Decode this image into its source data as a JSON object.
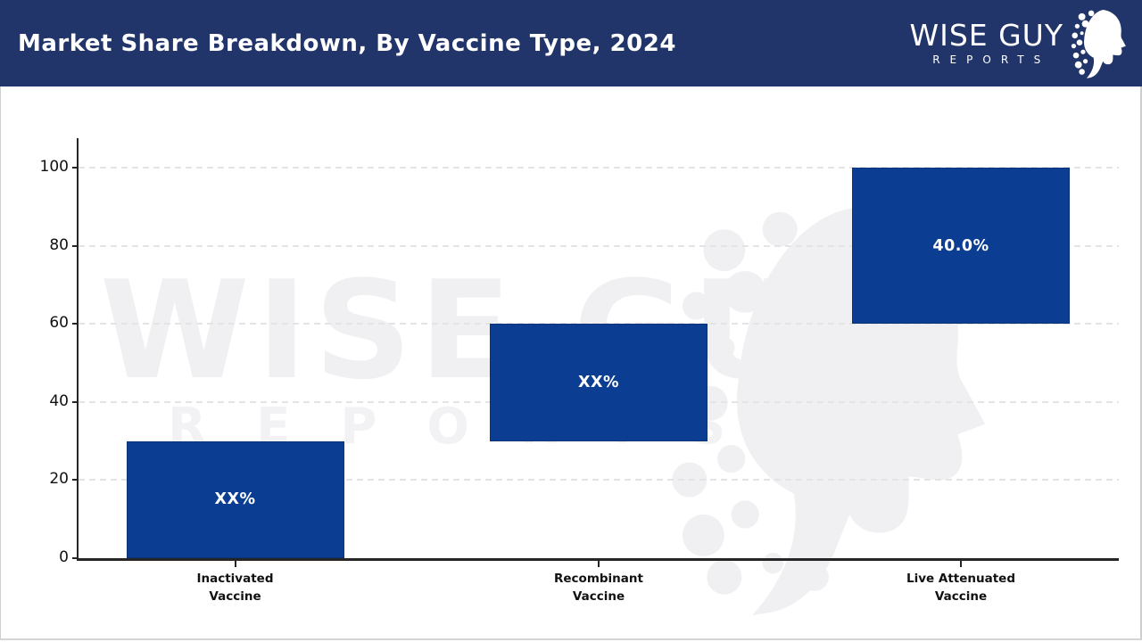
{
  "header": {
    "title": "Market Share Breakdown, By Vaccine Type, 2024",
    "logo": {
      "line1": "WISE GUY",
      "line2": "REPORTS"
    }
  },
  "watermark": {
    "line1": "WISE GUY",
    "line2": "REPORTS"
  },
  "colors": {
    "header_bg": "#21356a",
    "bar": "#0b3e92",
    "bar_edge": "#093577",
    "axis": "#262626",
    "grid": "#e4e4e7",
    "watermark": "#f0f0f3",
    "frame_border": "#cfcfcf",
    "bar_label": "#ffffff"
  },
  "chart_data": {
    "type": "bar",
    "subtype": "waterfall",
    "title": "Market Share Breakdown, By Vaccine Type, 2024",
    "categories": [
      "Inactivated Vaccine",
      "Recombinant Vaccine",
      "Live Attenuated Vaccine"
    ],
    "bars": [
      {
        "category_lines": [
          "Inactivated",
          "Vaccine"
        ],
        "start": 0,
        "end": 30,
        "value": 30,
        "label": "XX%"
      },
      {
        "category_lines": [
          "Recombinant",
          "Vaccine"
        ],
        "start": 30,
        "end": 60,
        "value": 30,
        "label": "XX%"
      },
      {
        "category_lines": [
          "Live Attenuated",
          "Vaccine"
        ],
        "start": 60,
        "end": 100,
        "value": 40,
        "label": "40.0%"
      }
    ],
    "yticks": [
      0,
      20,
      40,
      60,
      80,
      100
    ],
    "ylim": [
      0,
      107.5
    ],
    "xlabel": "",
    "ylabel": "",
    "grid": "horizontal-dashed",
    "legend": "none",
    "bar_color": "#0b3e92",
    "bar_label_color": "#ffffff"
  }
}
